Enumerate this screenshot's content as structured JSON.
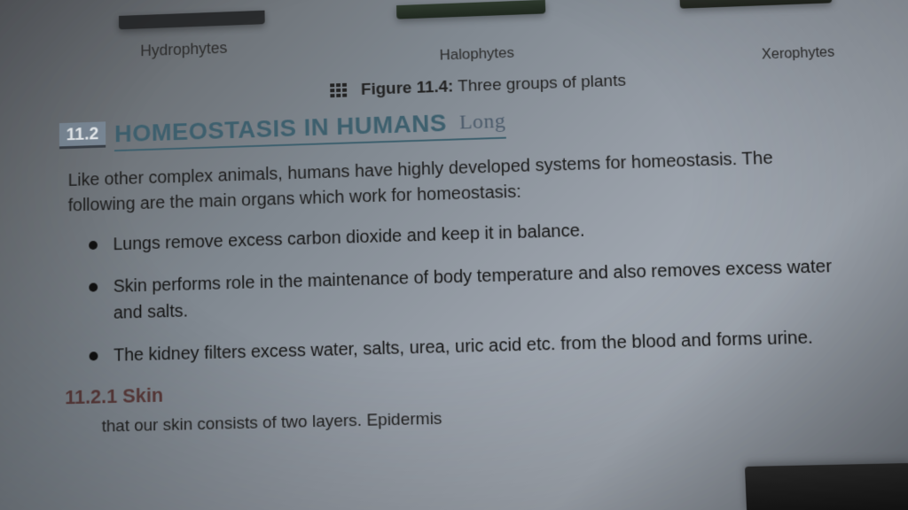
{
  "captions": {
    "hydrophytes": "Hydrophytes",
    "halophytes": "Halophytes",
    "xerophytes": "Xerophytes"
  },
  "figure": {
    "label": "Figure 11.4:",
    "text": "Three groups of plants"
  },
  "section": {
    "number": "11.2",
    "title_a": "H",
    "title_b": "OMEOSTASIS IN ",
    "title_c": "H",
    "title_d": "UMANS",
    "handwritten": "Long"
  },
  "intro": "Like other complex animals, humans have highly developed systems for homeostasis. The following are the main organs which work for homeostasis:",
  "bullets": [
    "Lungs remove excess carbon dioxide and keep it in balance.",
    "Skin performs role in the maintenance of body temperature and also removes excess water and salts.",
    "The kidney filters excess water, salts, urea, uric acid etc. from the blood and forms urine."
  ],
  "subsection": {
    "number": "11.2.1",
    "title": "Skin"
  },
  "subtext": "that our skin consists of two layers. Epidermis",
  "colors": {
    "heading": "#3d5f6d",
    "subheading": "#5b3b3b"
  }
}
